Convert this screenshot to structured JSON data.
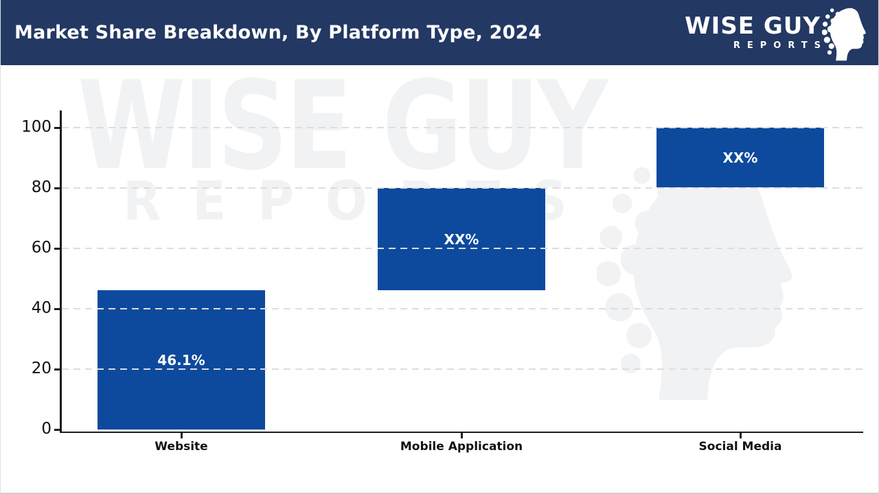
{
  "header": {
    "title": "Market Share Breakdown, By Platform Type, 2024",
    "bg_color": "#233863",
    "logo": {
      "line1": "WISE GUY",
      "line2": "REPORTS",
      "face_icon": "dotted-head-profile"
    }
  },
  "watermark": {
    "line1": "WISE GUY",
    "line2": "REPORTS",
    "face_icon": "dotted-head-profile",
    "color": "#f1f2f4"
  },
  "chart_data": {
    "type": "bar",
    "subtype": "waterfall",
    "title": "Market Share Breakdown, By Platform Type, 2024",
    "categories": [
      "Website",
      "Mobile Application",
      "Social Media"
    ],
    "bars": [
      {
        "category": "Website",
        "start": 0,
        "end": 46.1,
        "label": "46.1%"
      },
      {
        "category": "Mobile Application",
        "start": 46.1,
        "end": 79.9,
        "label": "XX%"
      },
      {
        "category": "Social Media",
        "start": 80.2,
        "end": 100,
        "label": "XX%"
      }
    ],
    "yticks": [
      0,
      20,
      40,
      60,
      80,
      100
    ],
    "gridlines": [
      20,
      40,
      60,
      80,
      100
    ],
    "ylim": [
      0,
      105
    ],
    "xlabel": "",
    "ylabel": "",
    "bar_color": "#0d4a9d",
    "axis_color": "#1c1c1c",
    "grid": true,
    "grid_style": "dashed",
    "legend": false
  }
}
